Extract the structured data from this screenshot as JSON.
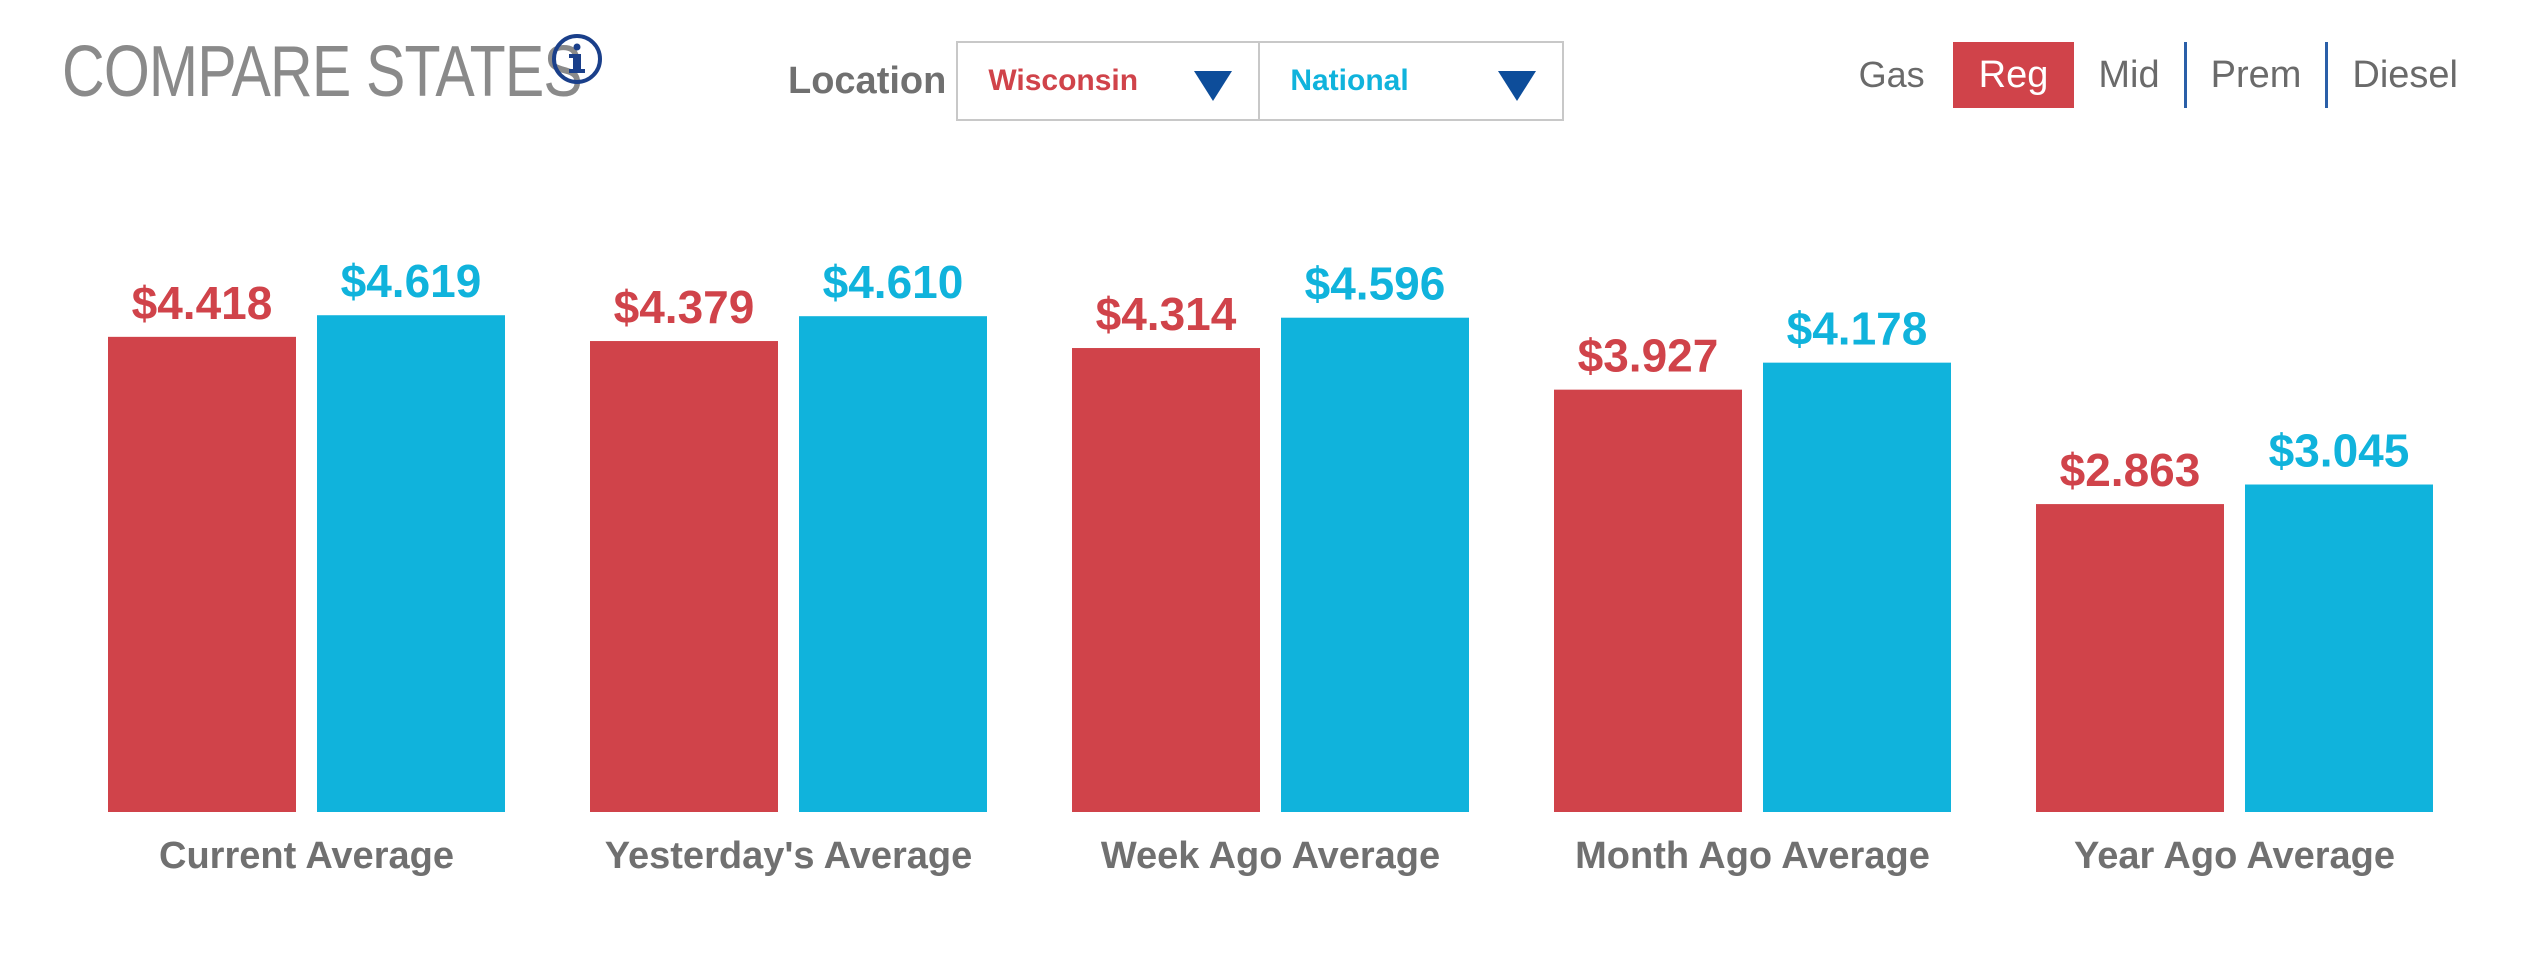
{
  "header": {
    "title": "COMPARE STATES",
    "info_icon": "info-circle-icon"
  },
  "location": {
    "label": "Location",
    "primary": "Wisconsin",
    "secondary": "National",
    "arrow_icon": "triangle-down-icon"
  },
  "fuel": {
    "label": "Gas",
    "options": [
      "Reg",
      "Mid",
      "Prem",
      "Diesel"
    ],
    "selected": "Reg"
  },
  "colors": {
    "state": "#d0434a",
    "national": "#10b3dc",
    "arrow": "#0d4d9a",
    "divider": "#2a5fa8",
    "label": "#707070"
  },
  "chart_data": {
    "type": "bar",
    "title": "",
    "xlabel": "",
    "ylabel": "",
    "ylim": [
      0,
      5
    ],
    "categories": [
      "Current Average",
      "Yesterday's Average",
      "Week Ago Average",
      "Month Ago Average",
      "Year Ago Average"
    ],
    "series": [
      {
        "name": "Wisconsin",
        "values": [
          4.418,
          4.379,
          4.314,
          3.927,
          2.863
        ],
        "labels": [
          "$4.418",
          "$4.379",
          "$4.314",
          "$3.927",
          "$2.863"
        ]
      },
      {
        "name": "National",
        "values": [
          4.619,
          4.61,
          4.596,
          4.178,
          3.045
        ],
        "labels": [
          "$4.619",
          "$4.610",
          "$4.596",
          "$4.178",
          "$3.045"
        ]
      }
    ]
  }
}
